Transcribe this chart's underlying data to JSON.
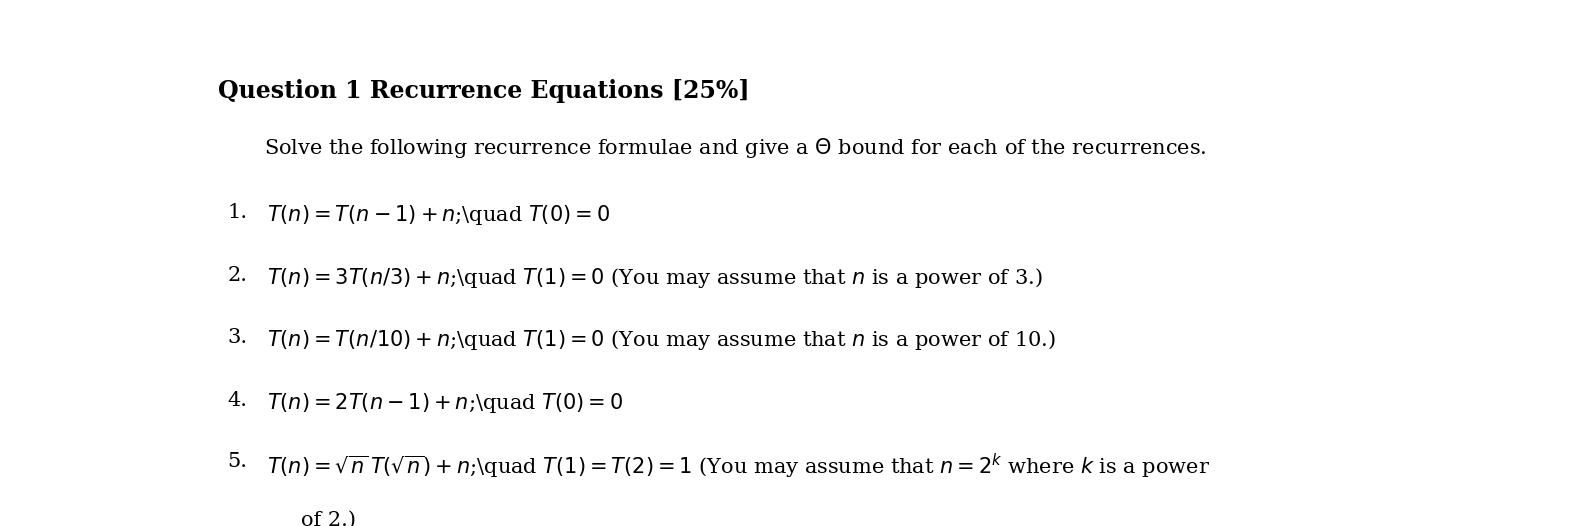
{
  "background_color": "#ffffff",
  "title_bold": "Question 1 Recurrence Equations [25%]",
  "subtitle": "Solve the following recurrence formulae and give a $\\Theta$ bound for each of the recurrences.",
  "items": [
    {
      "num": "1.",
      "math": "$T(n) = T(n-1) + n$;\\quad $T(0) = 0$",
      "extra": ""
    },
    {
      "num": "2.",
      "math": "$T(n) = 3T(n/3) + n$;\\quad $T(1) = 0$",
      "extra": " (You may assume that $n$ is a power of 3.)"
    },
    {
      "num": "3.",
      "math": "$T(n) = T(n/10) + n$;\\quad $T(1) = 0$",
      "extra": " (You may assume that $n$ is a power of 10.)"
    },
    {
      "num": "4.",
      "math": "$T(n) = 2T(n-1) + n$;\\quad $T(0) = 0$",
      "extra": ""
    },
    {
      "num": "5.",
      "math": "$T(n) = \\sqrt{n}\\,T(\\sqrt{n}) + n$;\\quad $T(1) = T(2) = 1$",
      "extra": " (You may assume that $n = 2^k$ where $k$ is a power",
      "continuation": "of 2.)"
    }
  ],
  "title_fontsize": 17,
  "subtitle_fontsize": 15,
  "item_fontsize": 15,
  "num_fontsize": 15
}
